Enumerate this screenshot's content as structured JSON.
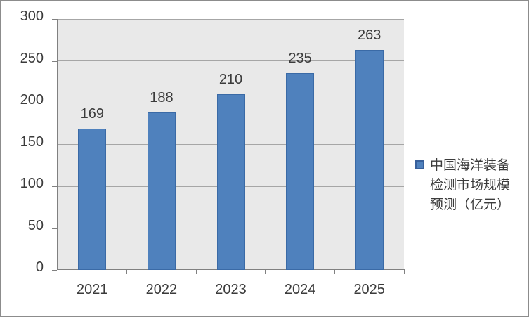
{
  "chart_data": {
    "type": "bar",
    "title": "",
    "categories": [
      "2021",
      "2022",
      "2023",
      "2024",
      "2025"
    ],
    "values": [
      169,
      188,
      210,
      235,
      263
    ],
    "data_labels": [
      "169",
      "188",
      "210",
      "235",
      "263"
    ],
    "series_name": "中国海洋装备检测市场规模预测（亿元）",
    "legend_lines": {
      "line1": "中国海洋装备",
      "line2": "检测市场规模",
      "line3": "预测（亿元）"
    },
    "legend_position": "right",
    "xlabel": "",
    "ylabel": "",
    "ylim": [
      0,
      300
    ],
    "yticks": [
      0,
      50,
      100,
      150,
      200,
      250,
      300
    ],
    "grid": true,
    "colors": {
      "bar_fill": "#4F81BD",
      "bar_border": "#3A6AA6",
      "plot_background": "#E9E9E9",
      "gridline": "#A6A6A6",
      "axis_line": "#808080",
      "text": "#3B3B3B",
      "frame_border": "#8C8C8C",
      "legend_marker_border": "#38609B"
    }
  }
}
